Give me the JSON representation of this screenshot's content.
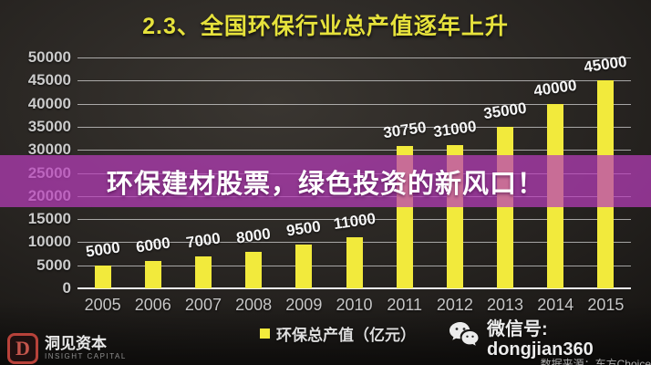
{
  "chart_data": {
    "type": "bar",
    "title": "2.3、全国环保行业总产值逐年上升",
    "categories": [
      "2005",
      "2006",
      "2007",
      "2008",
      "2009",
      "2010",
      "2011",
      "2012",
      "2013",
      "2014",
      "2015"
    ],
    "values": [
      5000,
      6000,
      7000,
      8000,
      9500,
      11000,
      30750,
      31000,
      35000,
      40000,
      45000
    ],
    "xlabel": "",
    "ylabel": "",
    "ylim": [
      0,
      50000
    ],
    "yticks": [
      0,
      5000,
      10000,
      15000,
      20000,
      25000,
      30000,
      35000,
      40000,
      45000,
      50000
    ],
    "grid": true,
    "legend": "环保总产值（亿元）",
    "legend_position": "bottom",
    "bar_color": "#f2ea3c",
    "title_color": "#e6e23c",
    "background_color": "#1d1b18"
  },
  "banner": {
    "text": "环保建材股票，绿色投资的新风口！",
    "overlay_rgba": "rgba(183,61,186,0.72)",
    "text_color": "#ffffff"
  },
  "footer": {
    "logo": {
      "mark": "D",
      "name": "洞见资本",
      "subtitle": "INSIGHT CAPITAL",
      "accent_color": "#b8423a"
    },
    "wechat_label": "微信号: dongjian360",
    "source": "数据来源：东方Choice"
  }
}
